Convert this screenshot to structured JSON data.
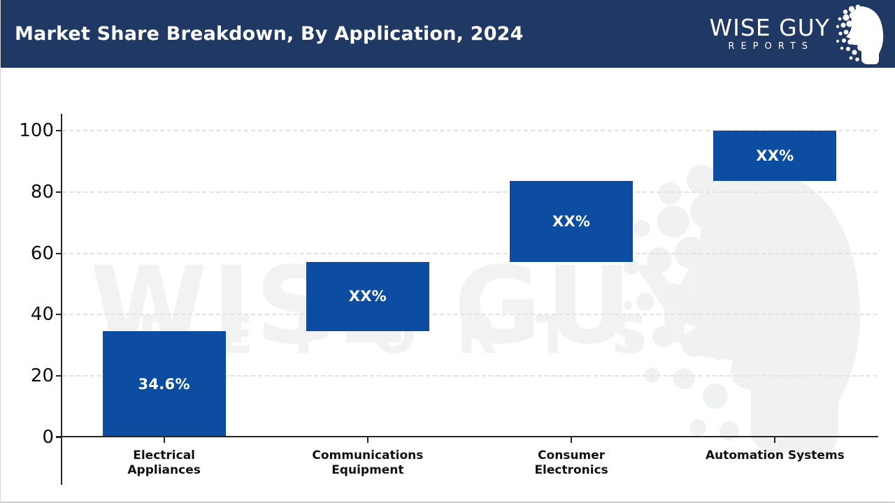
{
  "header": {
    "title": "Market Share Breakdown, By Application, 2024",
    "bg_color": "#1f3864",
    "logo": {
      "line1": "WISE GUY",
      "line2": "REPORTS"
    }
  },
  "watermark": {
    "line1": "WISE GUY",
    "line2": "REPORTS"
  },
  "chart_data": {
    "type": "bar",
    "subtype": "waterfall-floating-bars",
    "title": "Market Share Breakdown, By Application, 2024",
    "xlabel": "",
    "ylabel": "",
    "ylim": [
      0,
      105.5
    ],
    "yticks": [
      0,
      20,
      40,
      60,
      80,
      100
    ],
    "grid": "horizontal-dashed",
    "bar_color": "#0c4da2",
    "categories": [
      "Electrical Appliances",
      "Communications Equipment",
      "Consumer Electronics",
      "Automation Systems"
    ],
    "bars": [
      {
        "category": "Electrical Appliances",
        "category_lines": [
          "Electrical",
          "Appliances"
        ],
        "start": 0,
        "end": 34.6,
        "label": "34.6%"
      },
      {
        "category": "Communications Equipment",
        "category_lines": [
          "Communications",
          "Equipment"
        ],
        "start": 34.6,
        "end": 57.2,
        "label": "XX%"
      },
      {
        "category": "Consumer Electronics",
        "category_lines": [
          "Consumer",
          "Electronics"
        ],
        "start": 57.2,
        "end": 83.6,
        "label": "XX%"
      },
      {
        "category": "Automation Systems",
        "category_lines": [
          "Automation Systems"
        ],
        "start": 83.6,
        "end": 100,
        "label": "XX%"
      }
    ]
  }
}
